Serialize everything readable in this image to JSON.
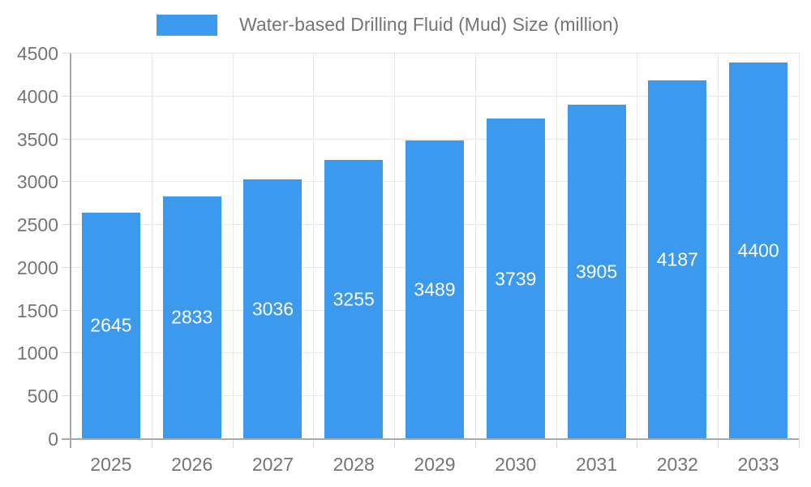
{
  "legend": {
    "series_label": "Water-based Drilling Fluid (Mud) Size (million)"
  },
  "chart_data": {
    "type": "bar",
    "title": "Water-based Drilling Fluid (Mud) Size (million)",
    "categories": [
      "2025",
      "2026",
      "2027",
      "2028",
      "2029",
      "2030",
      "2031",
      "2032",
      "2033"
    ],
    "values": [
      2645,
      2833,
      3036,
      3255,
      3489,
      3739,
      3905,
      4187,
      4400
    ],
    "xlabel": "",
    "ylabel": "",
    "ylim": [
      0,
      4500
    ],
    "ytick_step": 500,
    "grid": true,
    "legend_position": "top-center",
    "bar_label_position": "inside-center",
    "colors": {
      "bar": "#3B99EE",
      "bar_label": "#FFFFFF",
      "axis_label": "#757575",
      "grid_line": "#E9E9E9",
      "tick_line": "#D9D9D9",
      "axis_line": "#A9A9A9",
      "background": "#FFFFFF"
    }
  }
}
